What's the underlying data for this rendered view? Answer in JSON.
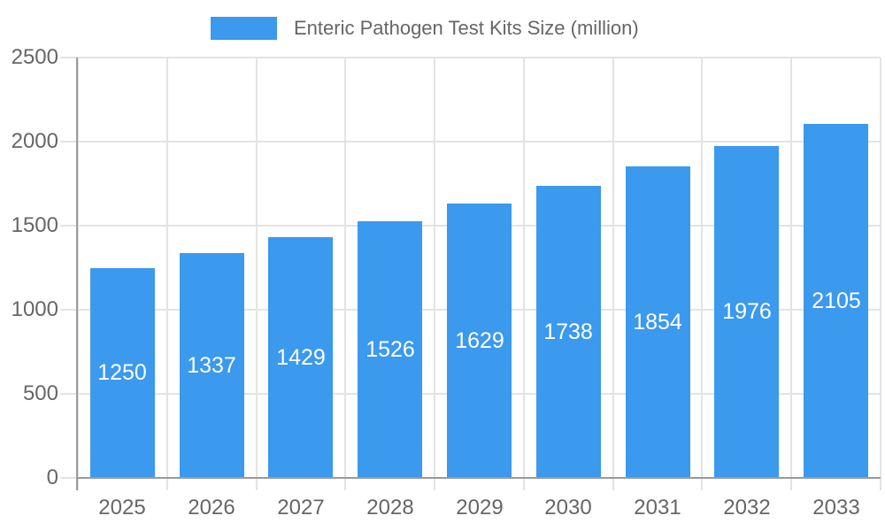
{
  "legend": {
    "label": "Enteric Pathogen Test Kits Size (million)"
  },
  "chart_data": {
    "type": "bar",
    "title": "",
    "xlabel": "",
    "ylabel": "",
    "categories": [
      "2025",
      "2026",
      "2027",
      "2028",
      "2029",
      "2030",
      "2031",
      "2032",
      "2033"
    ],
    "series": [
      {
        "name": "Enteric Pathogen Test Kits Size (million)",
        "values": [
          1250,
          1337,
          1429,
          1526,
          1629,
          1738,
          1854,
          1976,
          2105
        ]
      }
    ],
    "value_labels_shown": true,
    "ylim": [
      0,
      2500
    ],
    "yticks": [
      0,
      500,
      1000,
      1500,
      2000,
      2500
    ],
    "grid": "both",
    "legend_position": "top"
  },
  "colors": {
    "bar": "#3b99ee",
    "grid": "#e3e3e3",
    "axis_line": "#9a9a9a",
    "tick_text": "#666666",
    "legend_text": "#666666",
    "bar_label_text": "#ffffff",
    "background": "#ffffff"
  }
}
